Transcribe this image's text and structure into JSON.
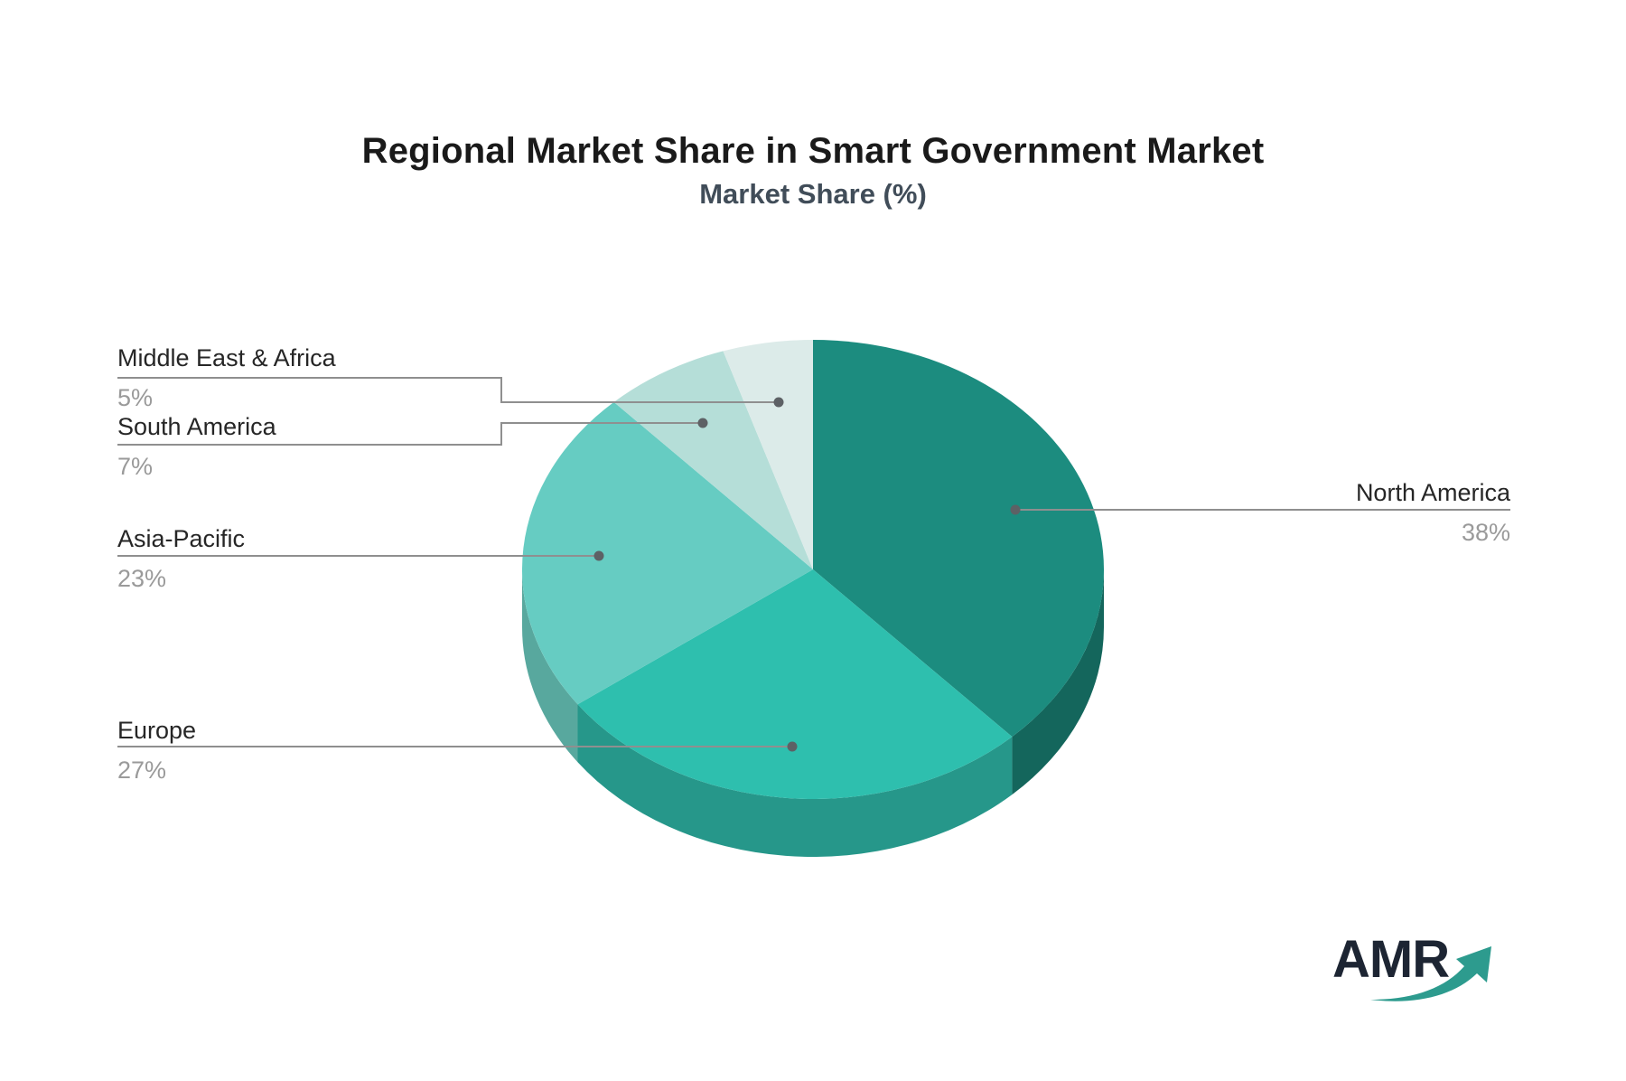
{
  "title": "Regional Market Share in Smart Government Market",
  "subtitle": "Market Share (%)",
  "logo": {
    "text": "AMR"
  },
  "chart_data": {
    "type": "pie",
    "title": "Regional Market Share in Smart Government Market",
    "subtitle": "Market Share (%)",
    "style": "3d-pie, starts at 12 o'clock, clockwise, no legend, callout labels",
    "slices": [
      {
        "name": "North America",
        "value": 38,
        "pct_label": "38%",
        "color": "#1c8c7f",
        "side_color": "#14665c"
      },
      {
        "name": "Europe",
        "value": 27,
        "pct_label": "27%",
        "color": "#2ebfae",
        "side_color": "#26978a"
      },
      {
        "name": "Asia-Pacific",
        "value": 23,
        "pct_label": "23%",
        "color": "#66ccc2",
        "side_color": "#58a89e"
      },
      {
        "name": "South America",
        "value": 7,
        "pct_label": "7%",
        "color": "#b5ded8",
        "side_color": "#8fbcb6"
      },
      {
        "name": "Middle East & Africa",
        "value": 5,
        "pct_label": "5%",
        "color": "#dcebe9",
        "side_color": "#b5c9c6"
      }
    ],
    "label_color": "#262626",
    "pct_color": "#9a9a9a",
    "leader_line_color": "#8f8f8f",
    "dot_color": "#5d6165",
    "background": "#ffffff"
  }
}
